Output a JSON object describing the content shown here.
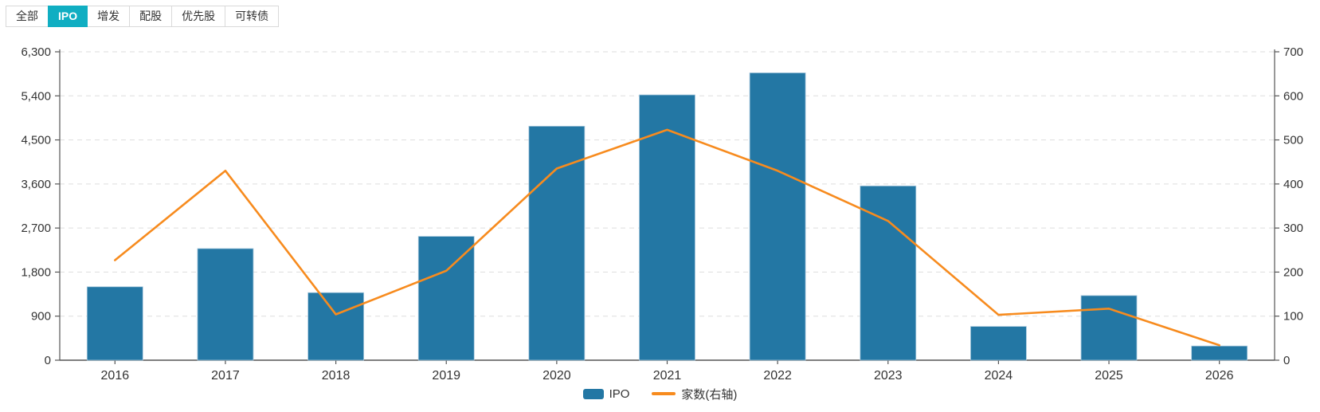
{
  "tabs": {
    "items": [
      {
        "label": "全部",
        "active": false
      },
      {
        "label": "IPO",
        "active": true
      },
      {
        "label": "增发",
        "active": false
      },
      {
        "label": "配股",
        "active": false
      },
      {
        "label": "优先股",
        "active": false
      },
      {
        "label": "可转债",
        "active": false
      }
    ]
  },
  "colors": {
    "bar": "#2377A4",
    "bar_edge": "#A9C9DE",
    "line": "#F78B1E",
    "active_tab": "#10AEC2",
    "grid": "#DDDDDD",
    "axis": "#555555",
    "text": "#333333",
    "tab_border": "#D9D9D9"
  },
  "legend": {
    "items": [
      {
        "label": "IPO",
        "type": "bar"
      },
      {
        "label": "家数(右轴)",
        "type": "line"
      }
    ]
  },
  "chart_data": {
    "type": "bar",
    "subtype": "bar+line dual-axis combo",
    "categories": [
      "2016",
      "2017",
      "2018",
      "2019",
      "2020",
      "2021",
      "2022",
      "2023",
      "2024",
      "2025",
      "2026"
    ],
    "series": [
      {
        "name": "IPO",
        "type": "bar",
        "axis": "left",
        "values": [
          1500,
          2280,
          1380,
          2530,
          4780,
          5420,
          5870,
          3560,
          690,
          1320,
          290
        ]
      },
      {
        "name": "家数(右轴)",
        "type": "line",
        "axis": "right",
        "values": [
          227,
          430,
          104,
          203,
          435,
          523,
          430,
          316,
          103,
          117,
          34
        ]
      }
    ],
    "title": "",
    "xlabel": "",
    "ylabel": "",
    "left_axis": {
      "min": 0,
      "max": 6300,
      "step": 900,
      "tick_labels": [
        "0",
        "900",
        "1,800",
        "2,700",
        "3,600",
        "4,500",
        "5,400",
        "6,300"
      ]
    },
    "right_axis": {
      "min": 0,
      "max": 700,
      "step": 100,
      "tick_labels": [
        "0",
        "100",
        "200",
        "300",
        "400",
        "500",
        "600",
        "700"
      ]
    },
    "grid": "horizontal dashed gridlines at left-axis ticks",
    "legend_position": "bottom-center"
  }
}
